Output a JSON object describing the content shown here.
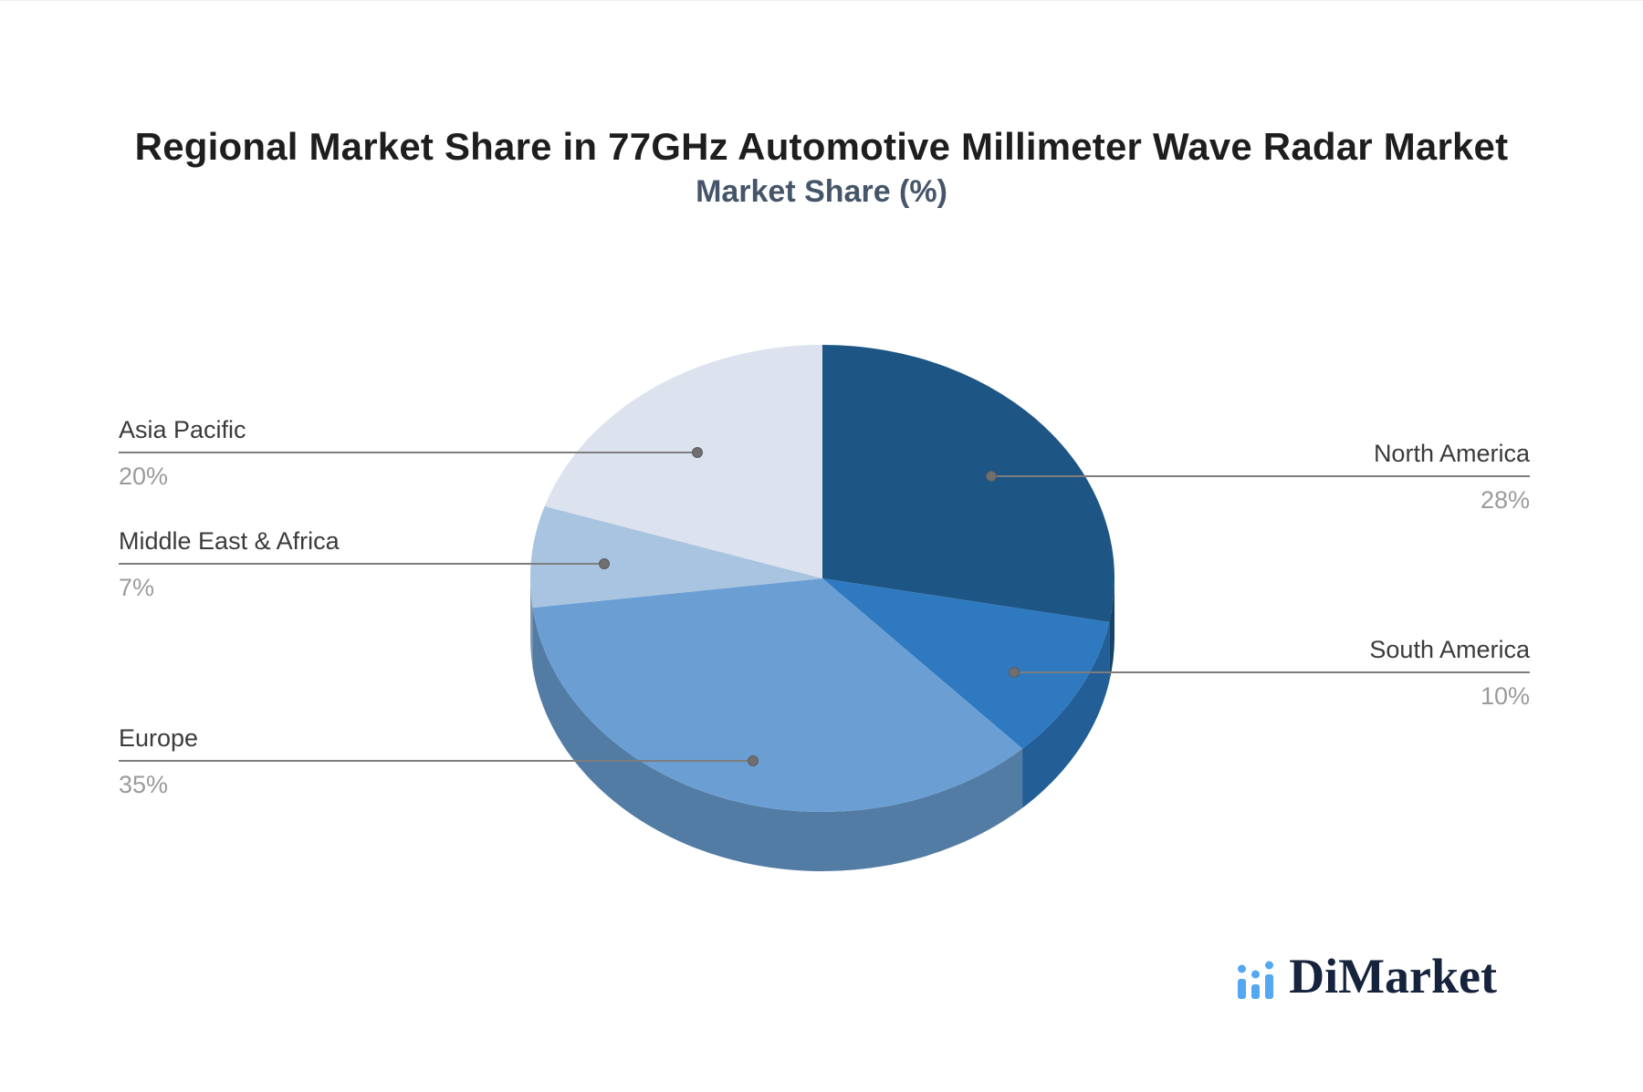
{
  "chart_data": {
    "type": "pie",
    "title": "Regional Market Share in 77GHz Automotive Millimeter Wave Radar Market",
    "subtitle": "Market Share (%)",
    "unit": "%",
    "effect_3d": true,
    "legend_position": "none",
    "start_angle": "12-oclock-clockwise",
    "slices": [
      {
        "name": "North America",
        "value": 28,
        "label": "28%",
        "color": "#1d5684"
      },
      {
        "name": "South America",
        "value": 10,
        "label": "10%",
        "color": "#2e79c0"
      },
      {
        "name": "Europe",
        "value": 35,
        "label": "35%",
        "color": "#6b9fd4"
      },
      {
        "name": "Middle East & Africa",
        "value": 7,
        "label": "7%",
        "color": "#a9c4e0"
      },
      {
        "name": "Asia Pacific",
        "value": 20,
        "label": "20%",
        "color": "#dce3ee"
      }
    ],
    "label_name_color": "#3b3b3b",
    "label_percent_color": "#9b9b9b",
    "leader_line_color": "#7d7d7d"
  },
  "branding": {
    "name": "DiMarket",
    "icon": "bar-chart-logo-icon",
    "icon_color": "#54a7f1",
    "text_color": "#16233d"
  }
}
